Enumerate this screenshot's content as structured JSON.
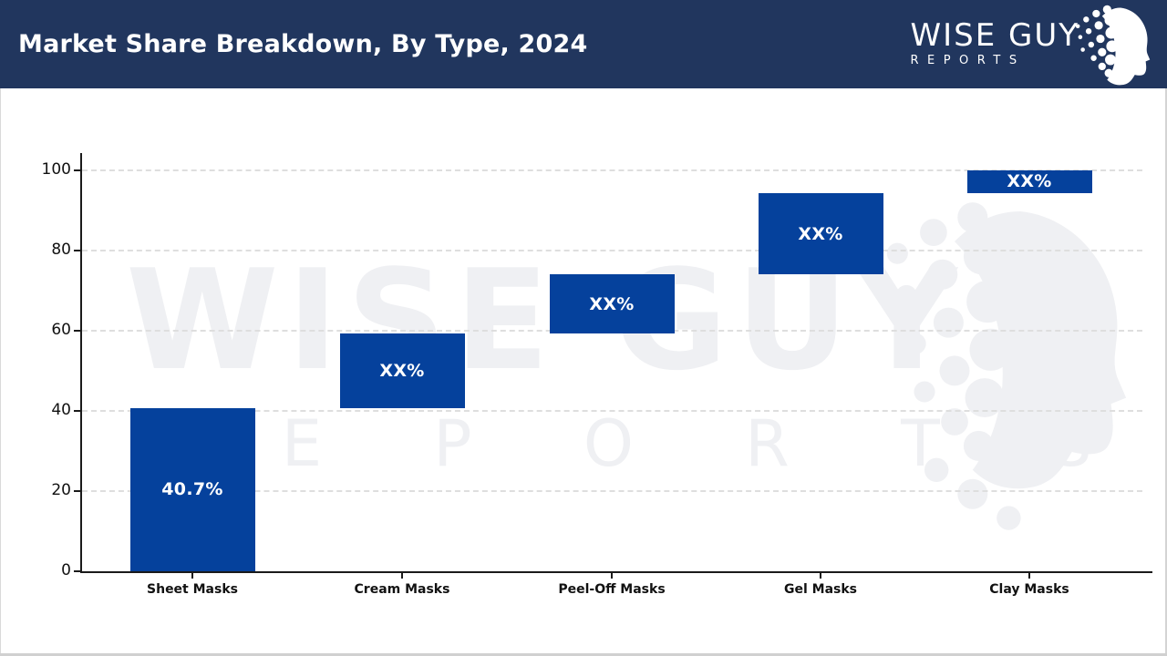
{
  "header": {
    "title": "Market Share Breakdown, By Type, 2024",
    "logo": {
      "line1": "WISE GUY",
      "line2": "REPORTS"
    }
  },
  "watermark": {
    "line1": "WISE GUY",
    "line2": "R E P O R T S"
  },
  "colors": {
    "header_bg": "#21365E",
    "bar": "#05419C",
    "bar_label": "#FFFFFF",
    "grid": "#DEDEDE",
    "axis": "#1A1A1A",
    "watermark": "#EFF0F3"
  },
  "chart_data": {
    "type": "bar",
    "subtype": "waterfall",
    "title": "Market Share Breakdown, By Type, 2024",
    "categories": [
      "Sheet Masks",
      "Cream Masks",
      "Peel-Off Masks",
      "Gel Masks",
      "Clay Masks"
    ],
    "segments": [
      {
        "category": "Sheet Masks",
        "start": 0,
        "end": 40.7,
        "label": "40.7%"
      },
      {
        "category": "Cream Masks",
        "start": 40.7,
        "end": 59.3,
        "label": "XX%"
      },
      {
        "category": "Peel-Off Masks",
        "start": 59.3,
        "end": 74.0,
        "label": "XX%"
      },
      {
        "category": "Gel Masks",
        "start": 74.0,
        "end": 94.4,
        "label": "XX%"
      },
      {
        "category": "Clay Masks",
        "start": 94.4,
        "end": 100.0,
        "label": "XX%"
      }
    ],
    "ylim": [
      0,
      100
    ],
    "yticks": [
      0,
      20,
      40,
      60,
      80,
      100
    ],
    "grid": "horizontal-dashed",
    "legend": "none",
    "xlabel": "",
    "ylabel": ""
  }
}
